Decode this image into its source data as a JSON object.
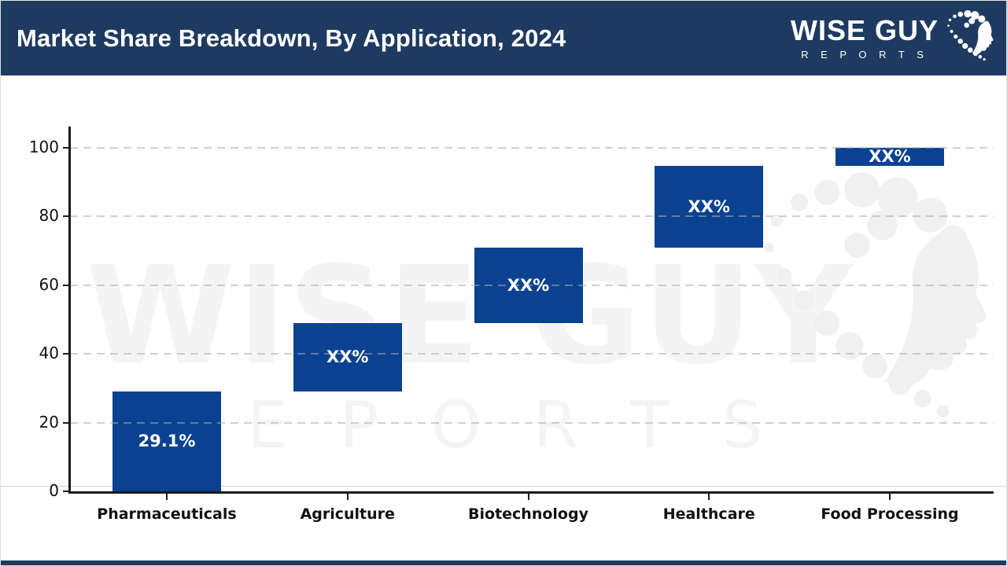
{
  "header": {
    "title": "Market Share Breakdown, By Application, 2024",
    "logo": {
      "name": "WISE GUY",
      "subtitle": "R E P O R T S"
    }
  },
  "watermark": {
    "line1": "WISE GUY",
    "line2": "R E P O R T S"
  },
  "chart_data": {
    "type": "bar",
    "subtype": "waterfall",
    "title": "Market Share Breakdown, By Application, 2024",
    "xlabel": "",
    "ylabel": "",
    "ylim": [
      0,
      106
    ],
    "yticks": [
      0,
      20,
      40,
      60,
      80,
      100
    ],
    "grid": "horizontal-dashed",
    "legend": "none",
    "categories": [
      "Pharmaceuticals",
      "Agriculture",
      "Biotechnology",
      "Healthcare",
      "Food Processing"
    ],
    "segments": [
      {
        "category": "Pharmaceuticals",
        "start": 0,
        "end": 29.1,
        "label": "29.1%"
      },
      {
        "category": "Agriculture",
        "start": 29.1,
        "end": 48.9,
        "label": "XX%"
      },
      {
        "category": "Biotechnology",
        "start": 48.9,
        "end": 70.9,
        "label": "XX%"
      },
      {
        "category": "Healthcare",
        "start": 70.9,
        "end": 94.6,
        "label": "XX%"
      },
      {
        "category": "Food Processing",
        "start": 94.6,
        "end": 100,
        "label": "XX%"
      }
    ]
  },
  "colors": {
    "header_bg": "#1f3a60",
    "footer_bar": "#1f3a60",
    "bar": "#0a4291",
    "axis": "#1a1a1a",
    "grid": "#d0d0d0",
    "watermark": "#f4f4f4"
  }
}
